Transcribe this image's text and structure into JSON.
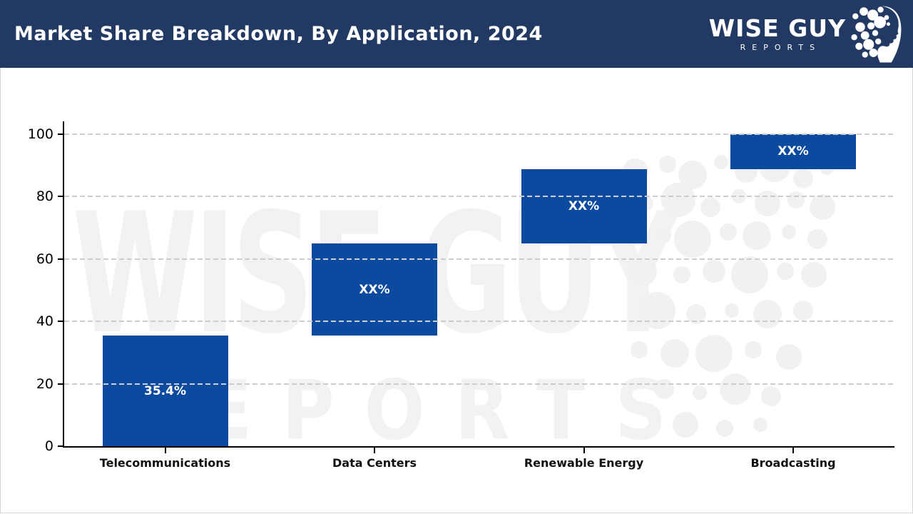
{
  "header": {
    "title": "Market Share Breakdown, By Application, 2024",
    "logo": {
      "brand_top": "WISE GUY",
      "brand_bottom": "REPORTS"
    }
  },
  "watermark": {
    "line1": "WISE GUY",
    "line2": "REPORTS"
  },
  "colors": {
    "header_bg": "#223A63",
    "bar": "#0B4A9F",
    "grid": "#cdcdcd",
    "watermark": "#f2f2f2"
  },
  "chart_data": {
    "type": "bar",
    "subtype": "waterfall",
    "title": "Market Share Breakdown, By Application, 2024",
    "categories": [
      "Telecommunications",
      "Data Centers",
      "Renewable Energy",
      "Broadcasting"
    ],
    "segments": [
      {
        "category": "Telecommunications",
        "start": 0,
        "end": 35.4,
        "label": "35.4%"
      },
      {
        "category": "Data Centers",
        "start": 35.4,
        "end": 64.9,
        "label": "XX%"
      },
      {
        "category": "Renewable Energy",
        "start": 64.9,
        "end": 88.7,
        "label": "XX%"
      },
      {
        "category": "Broadcasting",
        "start": 88.7,
        "end": 100,
        "label": "XX%"
      }
    ],
    "yticks": [
      0,
      20,
      40,
      60,
      80,
      100
    ],
    "ylim": [
      0,
      104
    ],
    "grid": "horizontal dashed, drawn above bars",
    "legend": "none",
    "bar_color": "#0B4A9F"
  }
}
